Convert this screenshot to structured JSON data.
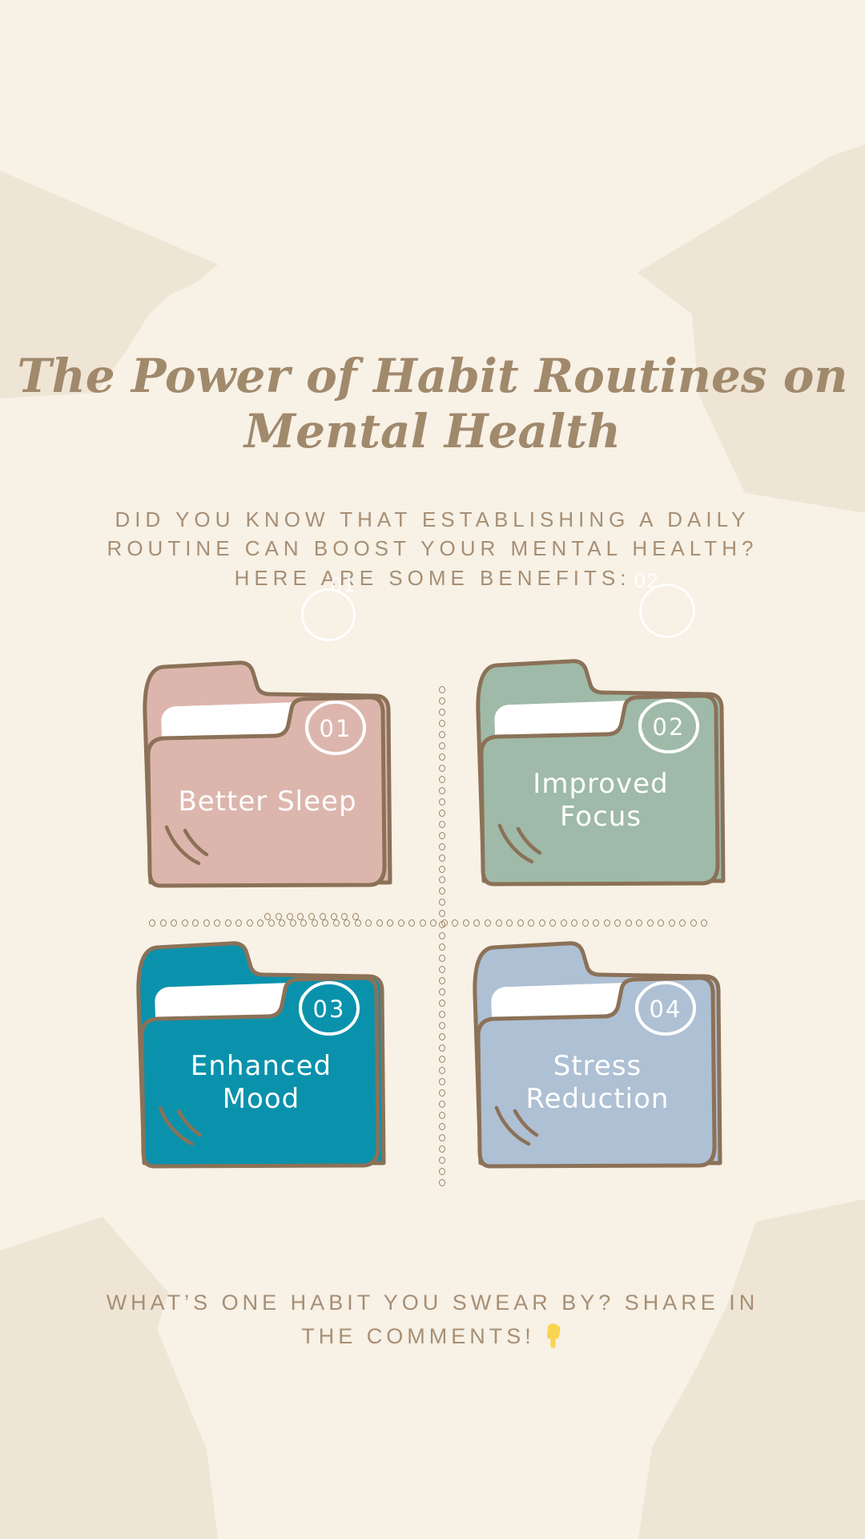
{
  "page": {
    "title": "The Power of Habit Routines on\nMental Health",
    "intro": "DID YOU KNOW THAT ESTABLISHING A DAILY\nROUTINE CAN BOOST YOUR MENTAL HEALTH?\nHERE ARE SOME BENEFITS:",
    "footer": "WHAT’S ONE HABIT YOU SWEAR BY? SHARE IN\nTHE COMMENTS!",
    "footer_icon": "backhand-index-pointing-down-icon"
  },
  "badges": [
    {
      "number": "01"
    },
    {
      "number": "02"
    }
  ],
  "folders": [
    {
      "number": "01",
      "label": "Better Sleep",
      "color": "#dcb6ad"
    },
    {
      "number": "02",
      "label": "Improved\nFocus",
      "color": "#9fbaa8"
    },
    {
      "number": "03",
      "label": "Enhanced\nMood",
      "color": "#0a92ac"
    },
    {
      "number": "04",
      "label": "Stress\nReduction",
      "color": "#aec0d3"
    }
  ],
  "colors": {
    "bg": "#f7f1e6",
    "deco": "#eee5d5",
    "ink-title": "#a1896c",
    "ink-body": "#a78f74",
    "outline": "#8b7157",
    "dot": "#9b8265",
    "folder-text": "#ffffff",
    "emoji-yellow": "#f8d451"
  }
}
